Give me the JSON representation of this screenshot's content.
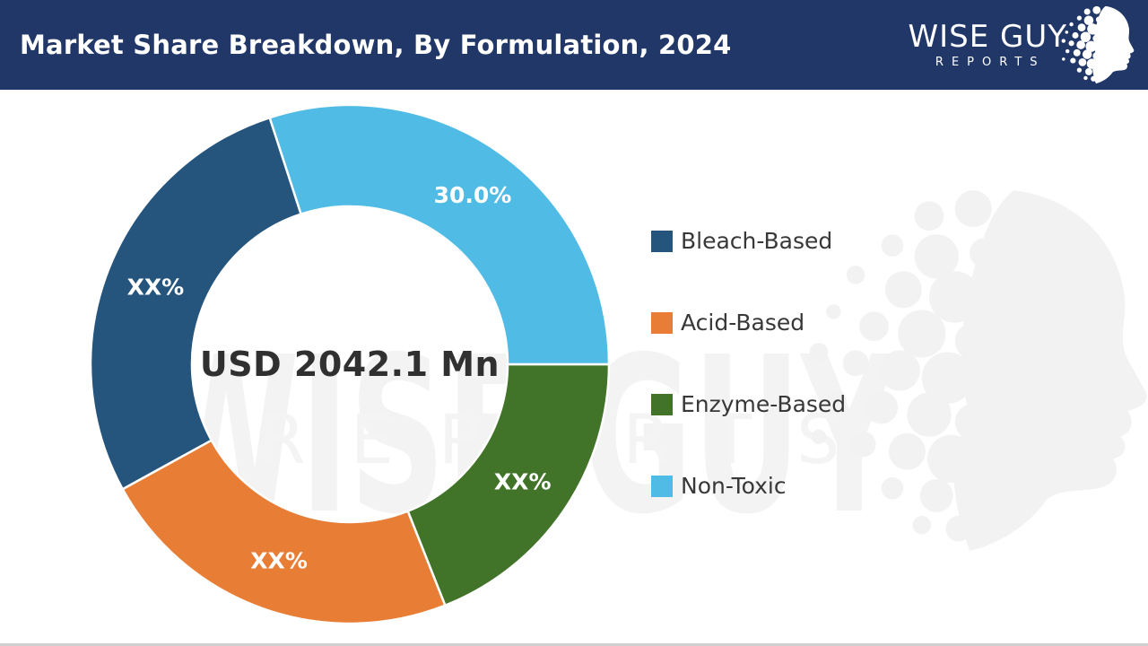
{
  "header": {
    "title": "Market Share Breakdown, By Formulation, 2024",
    "logo": {
      "line1": "WISE GUY",
      "line2": "REPORTS"
    }
  },
  "chart_data": {
    "type": "pie",
    "subtype": "donut",
    "title": "Market Share Breakdown, By Formulation, 2024",
    "center_label": "USD 2042.1 Mn",
    "start_angle": 108,
    "direction": "counterclockwise",
    "categories": [
      "Bleach-Based",
      "Acid-Based",
      "Enzyme-Based",
      "Non-Toxic"
    ],
    "series": [
      {
        "name": "Bleach-Based",
        "value": 28,
        "display_label": "XX%",
        "color": "#25547C"
      },
      {
        "name": "Acid-Based",
        "value": 23,
        "display_label": "XX%",
        "color": "#E87D35"
      },
      {
        "name": "Enzyme-Based",
        "value": 19,
        "display_label": "XX%",
        "color": "#417328"
      },
      {
        "name": "Non-Toxic",
        "value": 30,
        "display_label": "30.0%",
        "color": "#50BCE5"
      }
    ],
    "legend_position": "right",
    "label_color": "#ffffff"
  },
  "watermark": {
    "line1": "WISE GUY",
    "line2": "REPORTS"
  },
  "colors": {
    "header_bg": "#213768",
    "header_text": "#ffffff",
    "center_text": "#303030",
    "legend_text": "#383838",
    "watermark": "#f3f3f3",
    "bottom_border": "#cfcfcf"
  }
}
